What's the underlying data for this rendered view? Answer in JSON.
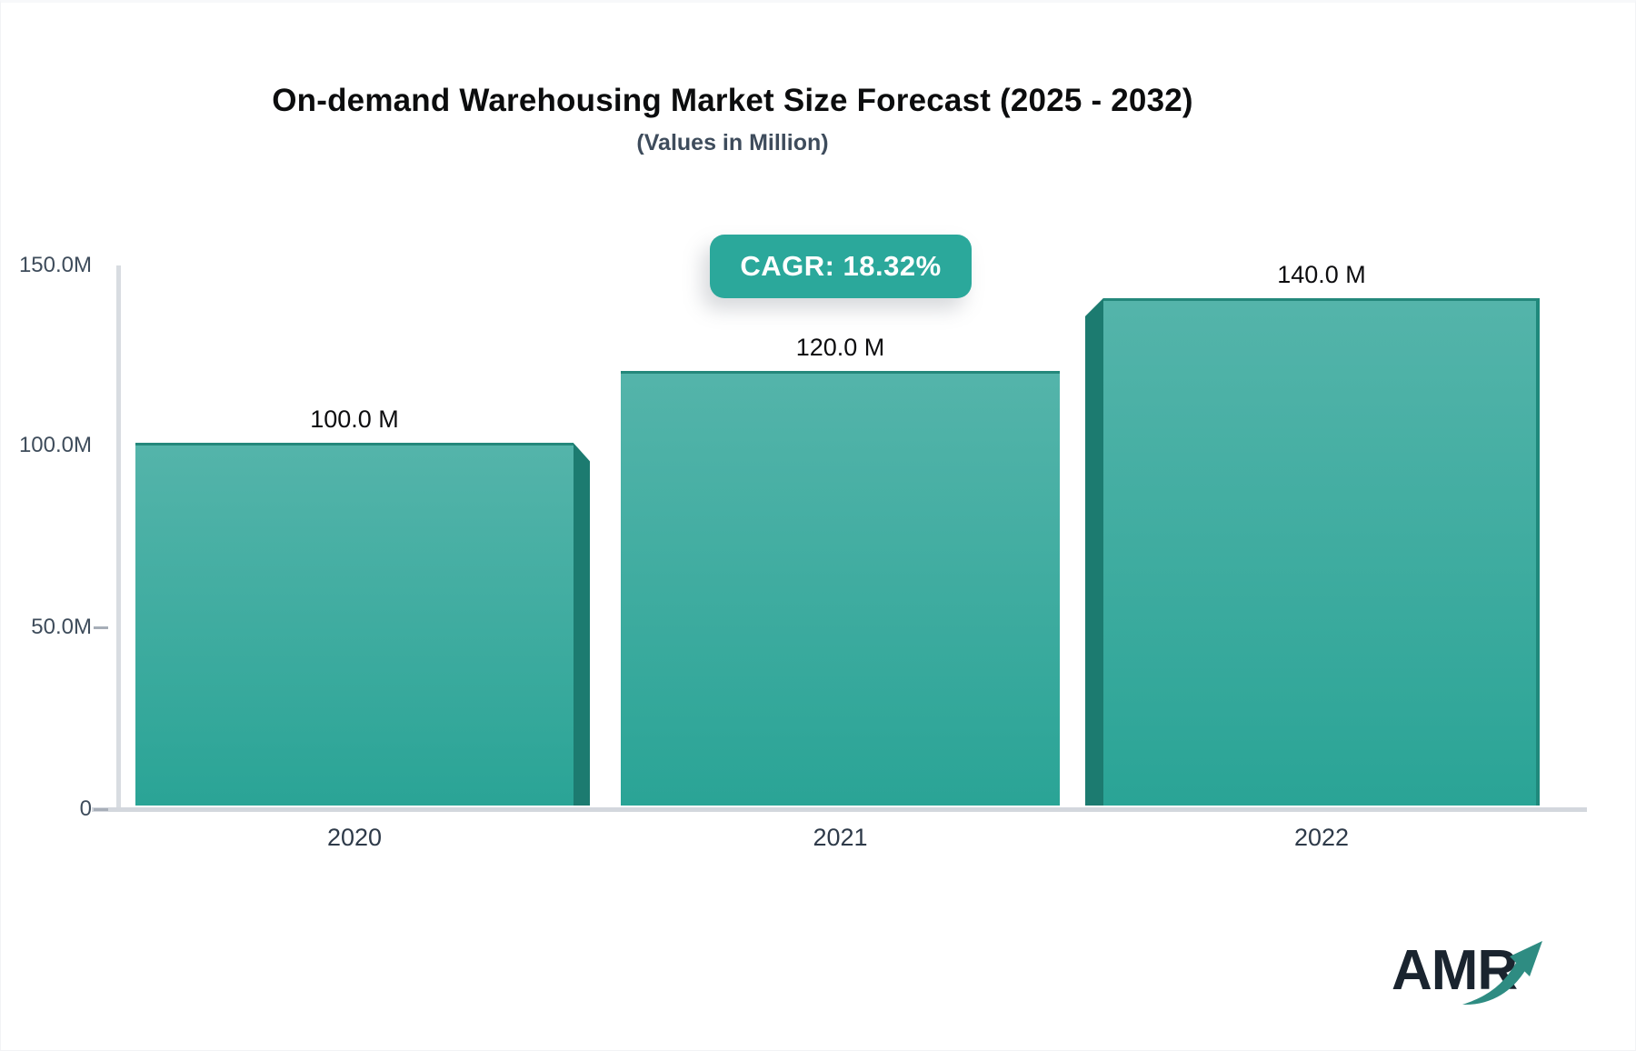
{
  "header": {
    "title": "On-demand Warehousing Market Size Forecast (2025 - 2032)",
    "subtitle": "(Values in Million)"
  },
  "badge": {
    "label": "CAGR: 18.32%",
    "bg": "#2BA89B"
  },
  "chart_data": {
    "type": "bar",
    "title": "On-demand Warehousing Market Size Forecast (2025 - 2032)",
    "subtitle": "(Values in Million)",
    "unit": "Million",
    "cagr_percent": 18.32,
    "categories": [
      "2020",
      "2021",
      "2022"
    ],
    "values": [
      100.0,
      120.0,
      140.0
    ],
    "value_labels": [
      "100.0 M",
      "120.0 M",
      "140.0 M"
    ],
    "ylim": [
      0,
      150
    ],
    "ytick_labels": [
      "150.0M",
      "100.0M",
      "50.0M",
      "0"
    ],
    "grid": "off",
    "legend": "none",
    "bar_color_top": "#54B4AA",
    "bar_color_bottom": "#2AA496",
    "bar_side_color": "#1C7B70"
  },
  "logo": {
    "text": "AMR",
    "text_color": "#1A242F",
    "arrow_color": "#2E8C82"
  }
}
